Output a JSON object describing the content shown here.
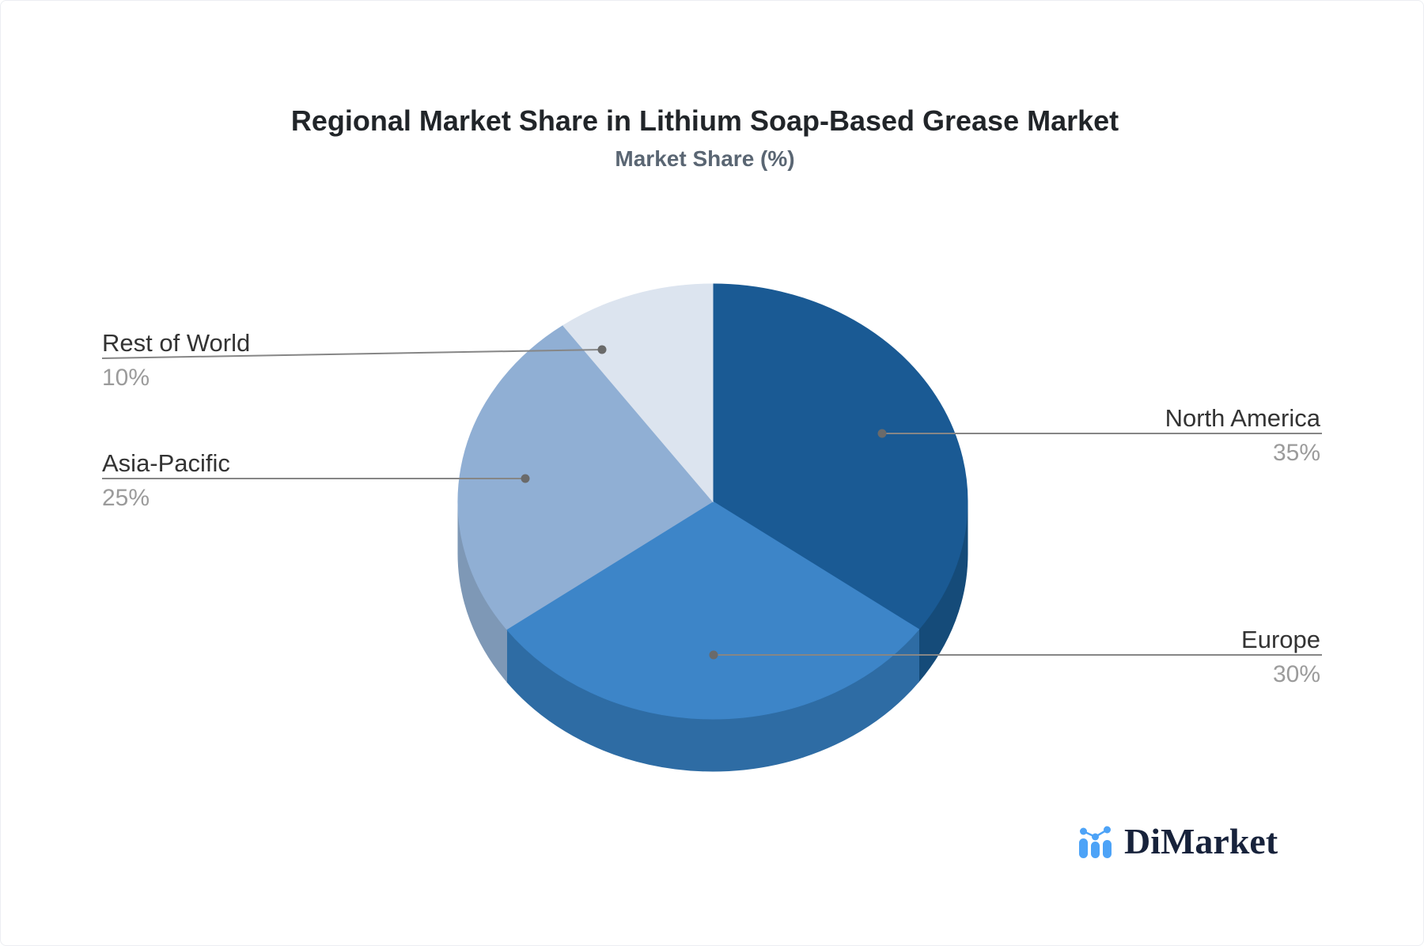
{
  "header": {
    "title": "Regional Market Share in Lithium Soap-Based Grease Market",
    "subtitle": "Market Share (%)"
  },
  "chart_data": {
    "type": "pie",
    "style": "3d",
    "title": "Regional Market Share in Lithium Soap-Based Grease Market",
    "subtitle": "Market Share (%)",
    "unit": "%",
    "start_angle_deg": 0,
    "direction": "clockwise",
    "legend_position": "callout-labels",
    "slices": [
      {
        "label": "North America",
        "value": 35,
        "pct_label": "35%",
        "color": "#1A5A94",
        "side_color": "#154B79",
        "label_side": "right"
      },
      {
        "label": "Europe",
        "value": 30,
        "pct_label": "30%",
        "color": "#3D85C8",
        "side_color": "#2E6CA4",
        "label_side": "right"
      },
      {
        "label": "Asia-Pacific",
        "value": 25,
        "pct_label": "25%",
        "color": "#90AFD4",
        "side_color": "#7E98B6",
        "label_side": "left"
      },
      {
        "label": "Rest of World",
        "value": 10,
        "pct_label": "10%",
        "color": "#DCE4EF",
        "side_color": "#B9C4D4",
        "label_side": "left"
      }
    ],
    "leader_line_color": "#868686",
    "leader_dot_color": "#6a6a6a"
  },
  "branding": {
    "logo_text": "DiMarket",
    "logo_text_color": "#17223b",
    "icon_color": "#4da3f7",
    "icon_name": "bar-chart-logo"
  }
}
